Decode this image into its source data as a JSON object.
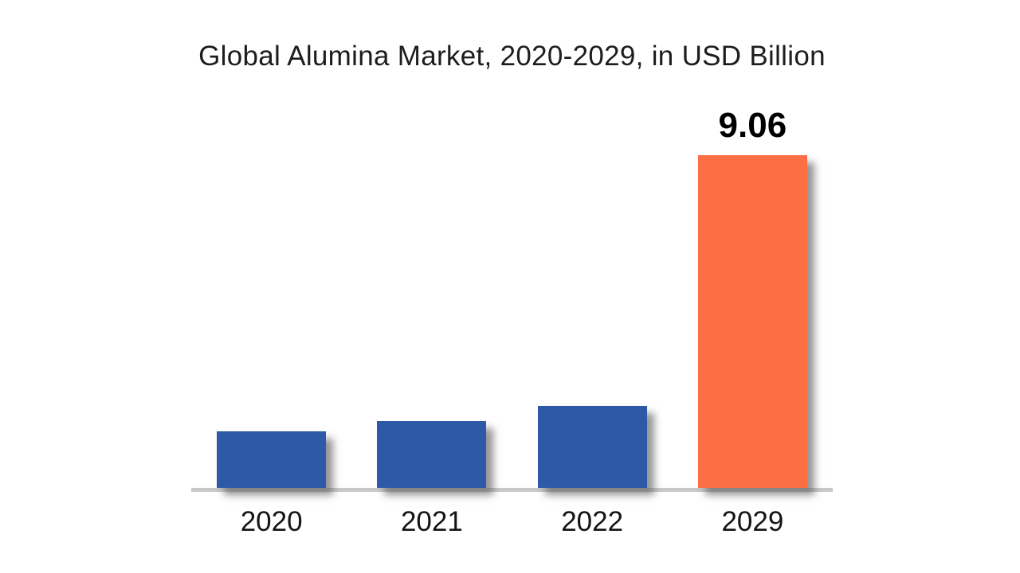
{
  "chart_data": {
    "type": "bar",
    "title": "Global Alumina Market, 2020-2029, in USD Billion",
    "categories": [
      "2020",
      "2021",
      "2022",
      "2029"
    ],
    "values": [
      1.54,
      1.82,
      2.23,
      9.06
    ],
    "data_labels": [
      "",
      "",
      "",
      "9.06"
    ],
    "bar_colors": [
      "#2e59a7",
      "#2e59a7",
      "#2e59a7",
      "#fc6e44"
    ],
    "xlabel": "",
    "ylabel": "USD Billion",
    "ylim": [
      0,
      9.06
    ],
    "grid": false,
    "legend": "none",
    "axis_line_color": "#c8c8c8",
    "background_color": "#ffffff",
    "highlight_category": "2029"
  }
}
